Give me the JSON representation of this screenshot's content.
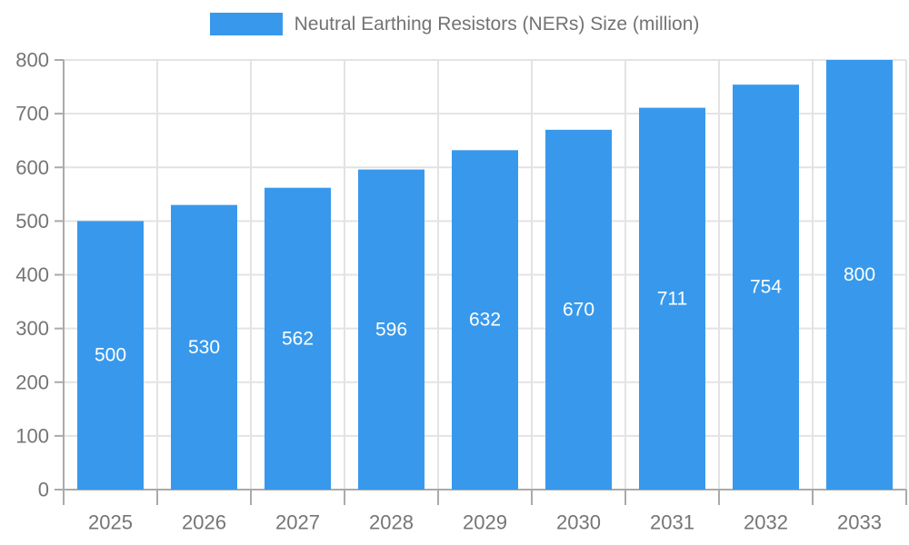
{
  "chart_data": {
    "type": "bar",
    "legend_label": "Neutral Earthing Resistors (NERs) Size (million)",
    "categories": [
      "2025",
      "2026",
      "2027",
      "2028",
      "2029",
      "2030",
      "2031",
      "2032",
      "2033"
    ],
    "values": [
      500,
      530,
      562,
      596,
      632,
      670,
      711,
      754,
      800
    ],
    "xlabel": "",
    "ylabel": "",
    "ylim": [
      0,
      800
    ],
    "ytick_step": 100,
    "grid": "on",
    "legend_position": "top",
    "value_labels": "inside-bar-middle",
    "colors": {
      "bar": "#3899EC",
      "grid_line": "#e3e3e3",
      "axis_line": "#aaaaaa",
      "tick_label": "#757575",
      "value_label": "#ffffff"
    }
  }
}
